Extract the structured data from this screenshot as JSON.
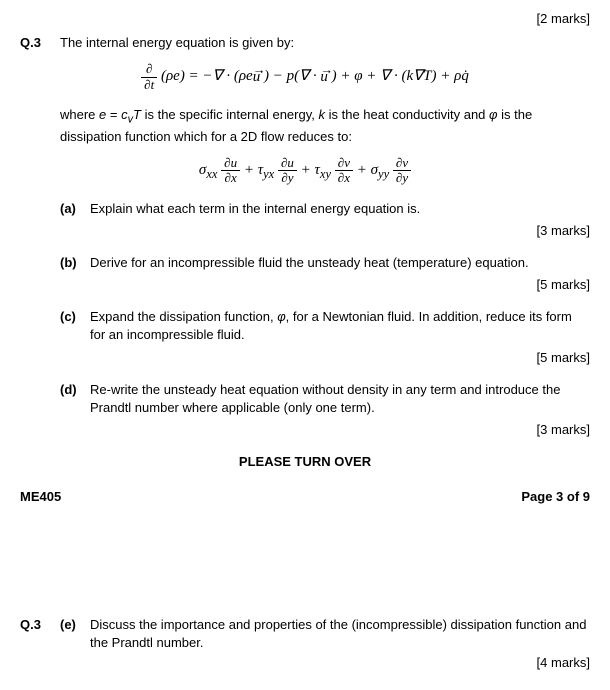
{
  "top_marks": "[2 marks]",
  "q_number": "Q.3",
  "q_intro": "The internal energy equation is given by:",
  "eq1_html": "<span class='frac'><span class='num'>∂</span><span class='den'>∂<i>t</i></span></span> (<i>ρe</i>) = −∇ · (<i>ρe</i><span class='vec'>u</span>&nbsp;) − <i>p</i>(∇ · <span class='vec'>u</span>&nbsp;) + <i>φ</i> + ∇ · (<i>k</i>∇<i>T</i>) + <i>ρ</i><i>q̇</i>",
  "where_html": "where <i>e</i> = <i>c<sub>v</sub>T</i> is the specific internal energy, <i>k</i> is the heat conductivity and <i>φ</i> is the dissipation function which for a 2D flow reduces to:",
  "eq2_html": "<i>σ<sub>xx</sub></i> <span class='frac'><span class='num'>∂<i>u</i></span><span class='den'>∂<i>x</i></span></span> + <i>τ<sub>yx</sub></i> <span class='frac'><span class='num'>∂<i>u</i></span><span class='den'>∂<i>y</i></span></span> + <i>τ<sub>xy</sub></i> <span class='frac'><span class='num'>∂<i>v</i></span><span class='den'>∂<i>x</i></span></span> + <i>σ<sub>yy</sub></i> <span class='frac'><span class='num'>∂<i>v</i></span><span class='den'>∂<i>y</i></span></span>",
  "parts": {
    "a": {
      "label": "(a)",
      "text": "Explain what each term in the internal energy equation is.",
      "marks": "[3 marks]"
    },
    "b": {
      "label": "(b)",
      "text": "Derive for an incompressible fluid the unsteady heat (temperature) equation.",
      "marks": "[5 marks]"
    },
    "c": {
      "label": "(c)",
      "text_html": "Expand the dissipation function, <i>φ</i>, for a Newtonian fluid. In addition, reduce its form for an incompressible fluid.",
      "marks": "[5 marks]"
    },
    "d": {
      "label": "(d)",
      "text": "Re-write the unsteady heat equation without density in any term and introduce the Prandtl number where applicable (only one term).",
      "marks": "[3 marks]"
    },
    "e": {
      "label": "(e)",
      "text": "Discuss the importance and properties of the (incompressible) dissipation function and the Prandtl number.",
      "marks": "[4 marks]"
    }
  },
  "turnover": "PLEASE TURN OVER",
  "footer": {
    "course": "ME405",
    "page": "Page 3 of 9"
  },
  "q_number2": "Q.3"
}
